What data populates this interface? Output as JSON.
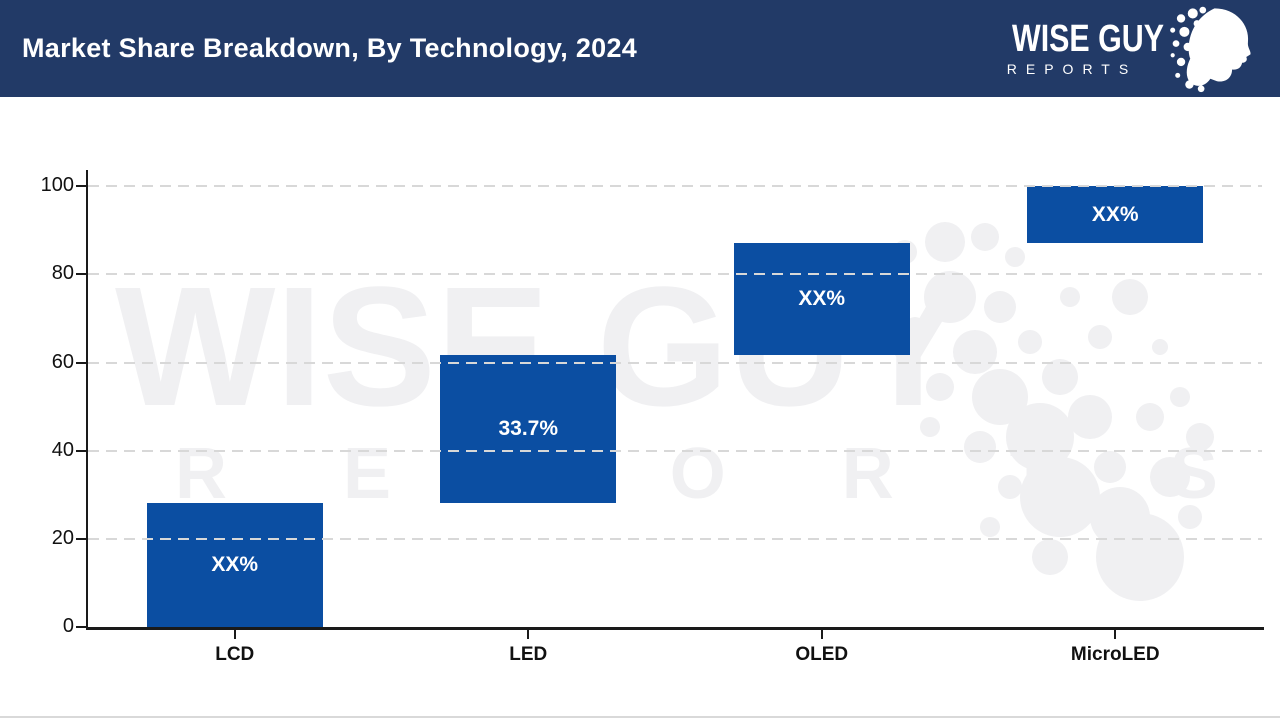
{
  "header": {
    "title": "Market Share Breakdown, By Technology, 2024",
    "bg_color": "#223A67",
    "logo": {
      "line1": "WISE GUY",
      "line2": "REPORTS"
    }
  },
  "watermark": {
    "line1": "WISE GUY",
    "line2": "R E P O R T S"
  },
  "chart_data": {
    "type": "bar",
    "subtype": "stacked-waterfall",
    "title": "Market Share Breakdown, By Technology, 2024",
    "categories": [
      "LCD",
      "LED",
      "OLED",
      "MicroLED"
    ],
    "segments": [
      {
        "category": "LCD",
        "start": 0,
        "end": 28.1,
        "label": "XX%"
      },
      {
        "category": "LED",
        "start": 28.1,
        "end": 61.8,
        "label": "33.7%"
      },
      {
        "category": "OLED",
        "start": 61.8,
        "end": 87.1,
        "label": "XX%"
      },
      {
        "category": "MicroLED",
        "start": 87.1,
        "end": 100,
        "label": "XX%"
      }
    ],
    "yticks": [
      0,
      20,
      40,
      60,
      80,
      100
    ],
    "ylim": [
      0,
      103.7
    ],
    "xlabel": "",
    "ylabel": "",
    "bar_color": "#0B4EA2",
    "bar_label_color": "#FFFFFF",
    "axis_color": "#1A1A1A",
    "tick_label_color": "#111111",
    "grid": true,
    "grid_color": "#D8D8D8",
    "grid_style": "dashed",
    "legend": "none"
  }
}
